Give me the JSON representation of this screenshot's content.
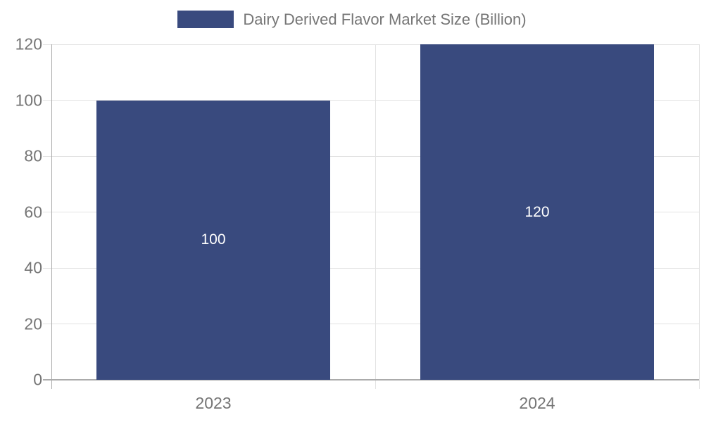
{
  "chart_data": {
    "type": "bar",
    "title": "Dairy Derived Flavor Market Size (Billion)",
    "legend": {
      "position": "top",
      "entries": [
        "Dairy Derived Flavor Market Size (Billion)"
      ]
    },
    "categories": [
      "2023",
      "2024"
    ],
    "values": [
      100,
      120
    ],
    "value_labels": [
      "100",
      "120"
    ],
    "xlabel": "",
    "ylabel": "",
    "ylim": [
      0,
      120
    ],
    "yticks": [
      0,
      20,
      40,
      60,
      80,
      100,
      120
    ],
    "grid": true,
    "colors": {
      "bar": "#394A7E",
      "bar_value_text": "#FFFFFF",
      "axis_text": "#757575",
      "legend_text": "#767676",
      "grid_line": "#E3E3E3",
      "axis_line": "#ABABAB"
    }
  }
}
